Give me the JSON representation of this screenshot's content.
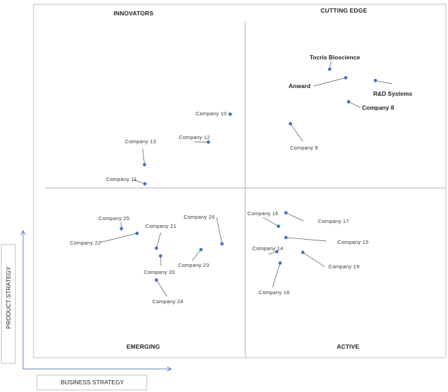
{
  "chart_data": {
    "type": "scatter",
    "quadrants": {
      "top_left": "INNOVATORS",
      "top_right": "CUTTING EDGE",
      "bottom_left": "EMERGING",
      "bottom_right": "ACTIVE"
    },
    "xlabel": "BUSINESS STRATEGY",
    "ylabel": "PRODUCT STRATEGY",
    "points": [
      {
        "label": "Tocris Bioscience",
        "x": 0.718,
        "y": 0.816,
        "emphasis": true
      },
      {
        "label": "Anward",
        "x": 0.757,
        "y": 0.792,
        "emphasis": true
      },
      {
        "label": "R&D Systems",
        "x": 0.829,
        "y": 0.784,
        "emphasis": true
      },
      {
        "label": "Company 8",
        "x": 0.764,
        "y": 0.724,
        "emphasis": true
      },
      {
        "label": "Company 9",
        "x": 0.623,
        "y": 0.662
      },
      {
        "label": "Company 10",
        "x": 0.477,
        "y": 0.689
      },
      {
        "label": "Company 12",
        "x": 0.424,
        "y": 0.61
      },
      {
        "label": "Company 13",
        "x": 0.269,
        "y": 0.546
      },
      {
        "label": "Company 11",
        "x": 0.27,
        "y": 0.492
      },
      {
        "label": "Company 16",
        "x": 0.594,
        "y": 0.372
      },
      {
        "label": "Company 17",
        "x": 0.612,
        "y": 0.41
      },
      {
        "label": "Company 15",
        "x": 0.612,
        "y": 0.34
      },
      {
        "label": "Company 14",
        "x": 0.59,
        "y": 0.3
      },
      {
        "label": "Company 19",
        "x": 0.653,
        "y": 0.298
      },
      {
        "label": "Company 18",
        "x": 0.598,
        "y": 0.268
      },
      {
        "label": "Company 25",
        "x": 0.213,
        "y": 0.365
      },
      {
        "label": "Company 22",
        "x": 0.251,
        "y": 0.352
      },
      {
        "label": "Company 21",
        "x": 0.298,
        "y": 0.31
      },
      {
        "label": "Company 26",
        "x": 0.457,
        "y": 0.322
      },
      {
        "label": "Company 23",
        "x": 0.406,
        "y": 0.306
      },
      {
        "label": "Company 20",
        "x": 0.308,
        "y": 0.288
      },
      {
        "label": "Company 24",
        "x": 0.298,
        "y": 0.22
      }
    ]
  }
}
